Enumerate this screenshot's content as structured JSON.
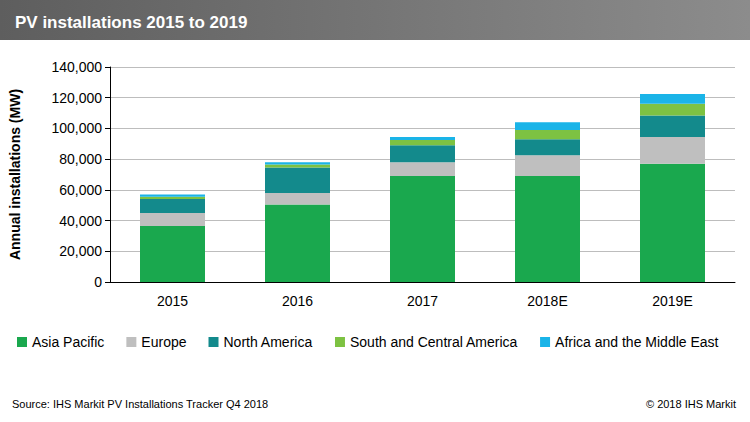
{
  "chart_data": {
    "type": "bar",
    "title": "PV installations 2015 to 2019",
    "y_label": "Annual installations (MW)",
    "annotations": [
      "Source: IHS Markit PV Installations Tracker Q4 2018",
      "© 2018 IHS Markit"
    ],
    "categories": [
      "2015",
      "2016",
      "2017",
      "2018E",
      "2019E"
    ],
    "series": [
      {
        "name": "Asia Pacific",
        "color": "#1aa84e",
        "values": [
          36500,
          50500,
          69000,
          69000,
          77000
        ]
      },
      {
        "name": "Europe",
        "color": "#bfbfbf",
        "values": [
          8500,
          7500,
          9000,
          13500,
          17500
        ]
      },
      {
        "name": "North America",
        "color": "#138a8c",
        "values": [
          9000,
          16500,
          11000,
          10500,
          14000
        ]
      },
      {
        "name": "South and Central America",
        "color": "#7dc242",
        "values": [
          1500,
          2000,
          3500,
          6000,
          7500
        ]
      },
      {
        "name": "Africa and the Middle East",
        "color": "#1ab4e8",
        "values": [
          1500,
          1500,
          2000,
          5000,
          6500
        ]
      }
    ],
    "ylim": [
      0,
      140000
    ],
    "yticks": [
      0,
      {
        "value": 20000,
        "label": "20,000"
      },
      {
        "value": 40000,
        "label": "40,000"
      },
      {
        "value": 60000,
        "label": "60,000"
      },
      {
        "value": 80000,
        "label": "80,000"
      },
      {
        "value": 100000,
        "label": "100,000"
      },
      {
        "value": 120000,
        "label": "120,000"
      },
      {
        "value": 140000,
        "label": "140,000"
      }
    ],
    "stacked": true,
    "grid": true,
    "legend": "bottom"
  }
}
